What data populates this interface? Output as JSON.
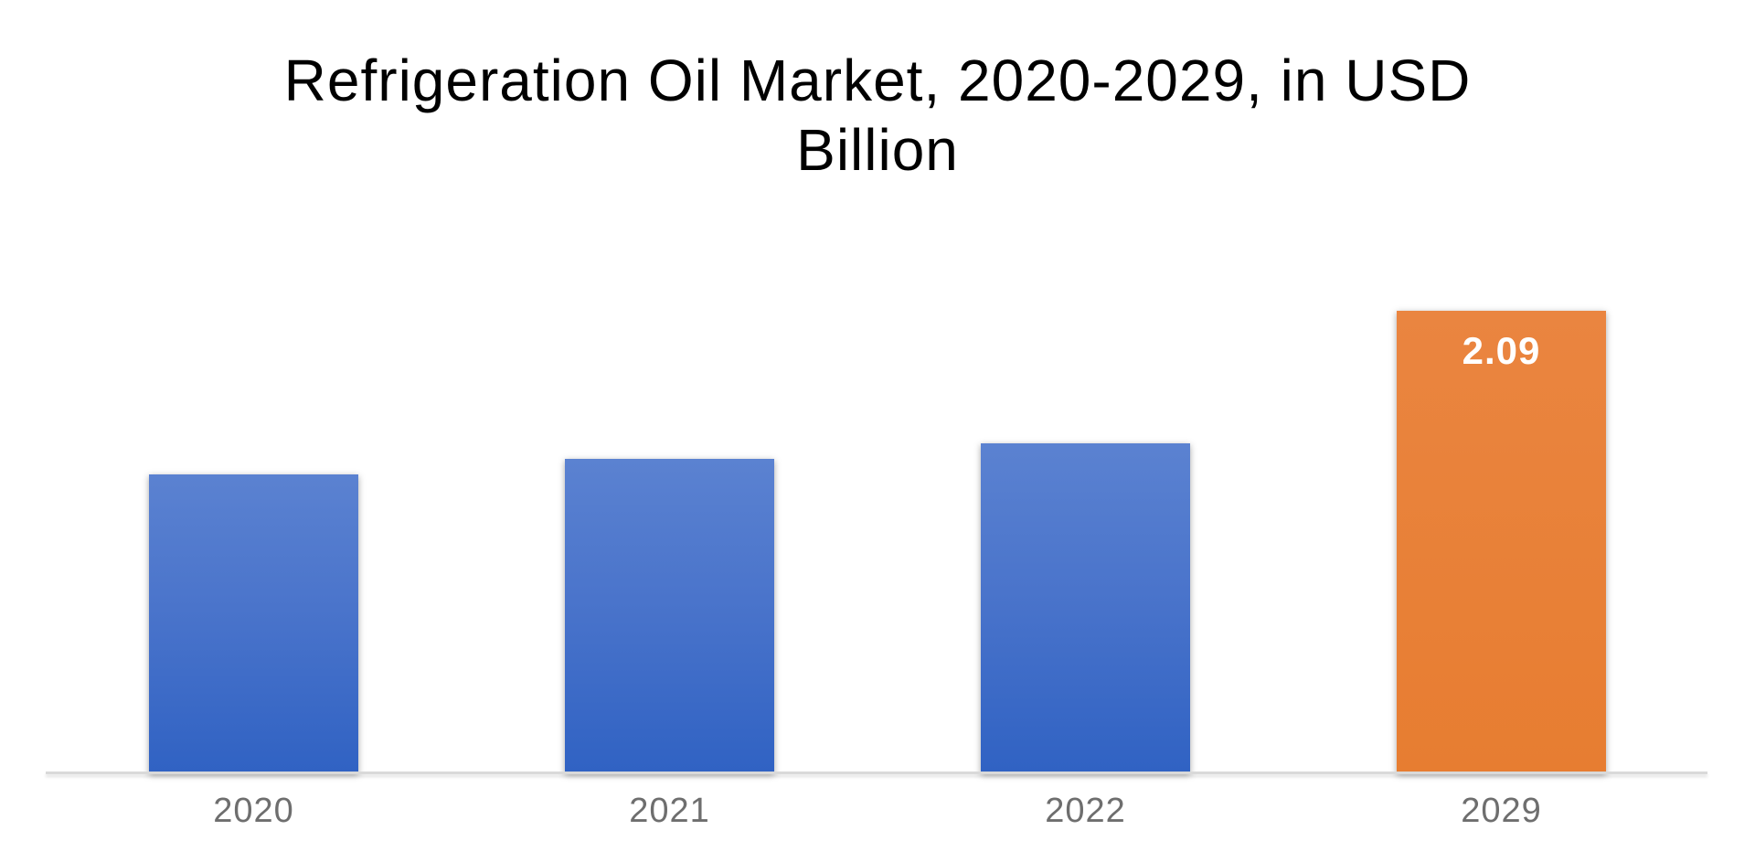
{
  "chart": {
    "title": "Refrigeration Oil Market, 2020-2029, in USD Billion",
    "title_lines": [
      "Refrigeration Oil Market, 2020-2029, in USD",
      "Billion"
    ]
  },
  "chart_data": {
    "type": "bar",
    "title": "Refrigeration Oil Market, 2020-2029, in USD Billion",
    "categories": [
      "2020",
      "2021",
      "2022",
      "2029"
    ],
    "values": [
      1.35,
      1.42,
      1.49,
      2.09
    ],
    "data_labels": [
      null,
      null,
      null,
      "2.09"
    ],
    "highlight_index": 3,
    "unit": "USD Billion",
    "xlabel": "",
    "ylabel": "",
    "ylim": [
      0,
      2.5
    ],
    "grid": false,
    "legend": false,
    "colors": {
      "bar_blue_top": "#5B82D1",
      "bar_blue_bottom": "#3062C3",
      "bar_orange": "#E8823A",
      "data_label_text": "#FFFFFF",
      "axis_line": "#D9D9D9",
      "tick_label_text": "#6E6E6E",
      "title_text": "#000000",
      "background": "#FFFFFF"
    }
  }
}
